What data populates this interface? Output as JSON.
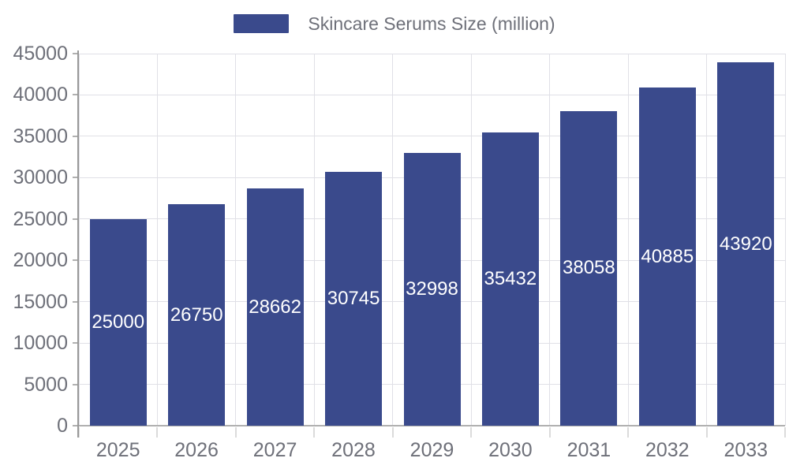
{
  "chart_data": {
    "type": "bar",
    "title": "",
    "legend_label": "Skincare Serums Size (million)",
    "legend_position": "top-center",
    "categories": [
      "2025",
      "2026",
      "2027",
      "2028",
      "2029",
      "2030",
      "2031",
      "2032",
      "2033"
    ],
    "values": [
      25000,
      26750,
      28662,
      30745,
      32998,
      35432,
      38058,
      40885,
      43920
    ],
    "xlabel": "",
    "ylabel": "",
    "ylim": [
      0,
      45000
    ],
    "yticks": [
      0,
      5000,
      10000,
      15000,
      20000,
      25000,
      30000,
      35000,
      40000,
      45000
    ],
    "grid": true,
    "bar_labels_inside": true
  },
  "colors": {
    "bar": "#3A4A8C",
    "grid": "#E0E0E6",
    "baseline": "#B0B0B0",
    "y_axis_line": "#999999",
    "y_tick": "#B0B0B0",
    "x_tick": "#DBDBDB",
    "axis_label_text": "#6E7079",
    "legend_text": "#6E7079",
    "bar_label_text": "#FFFFFF",
    "background": "#FFFFFF"
  }
}
